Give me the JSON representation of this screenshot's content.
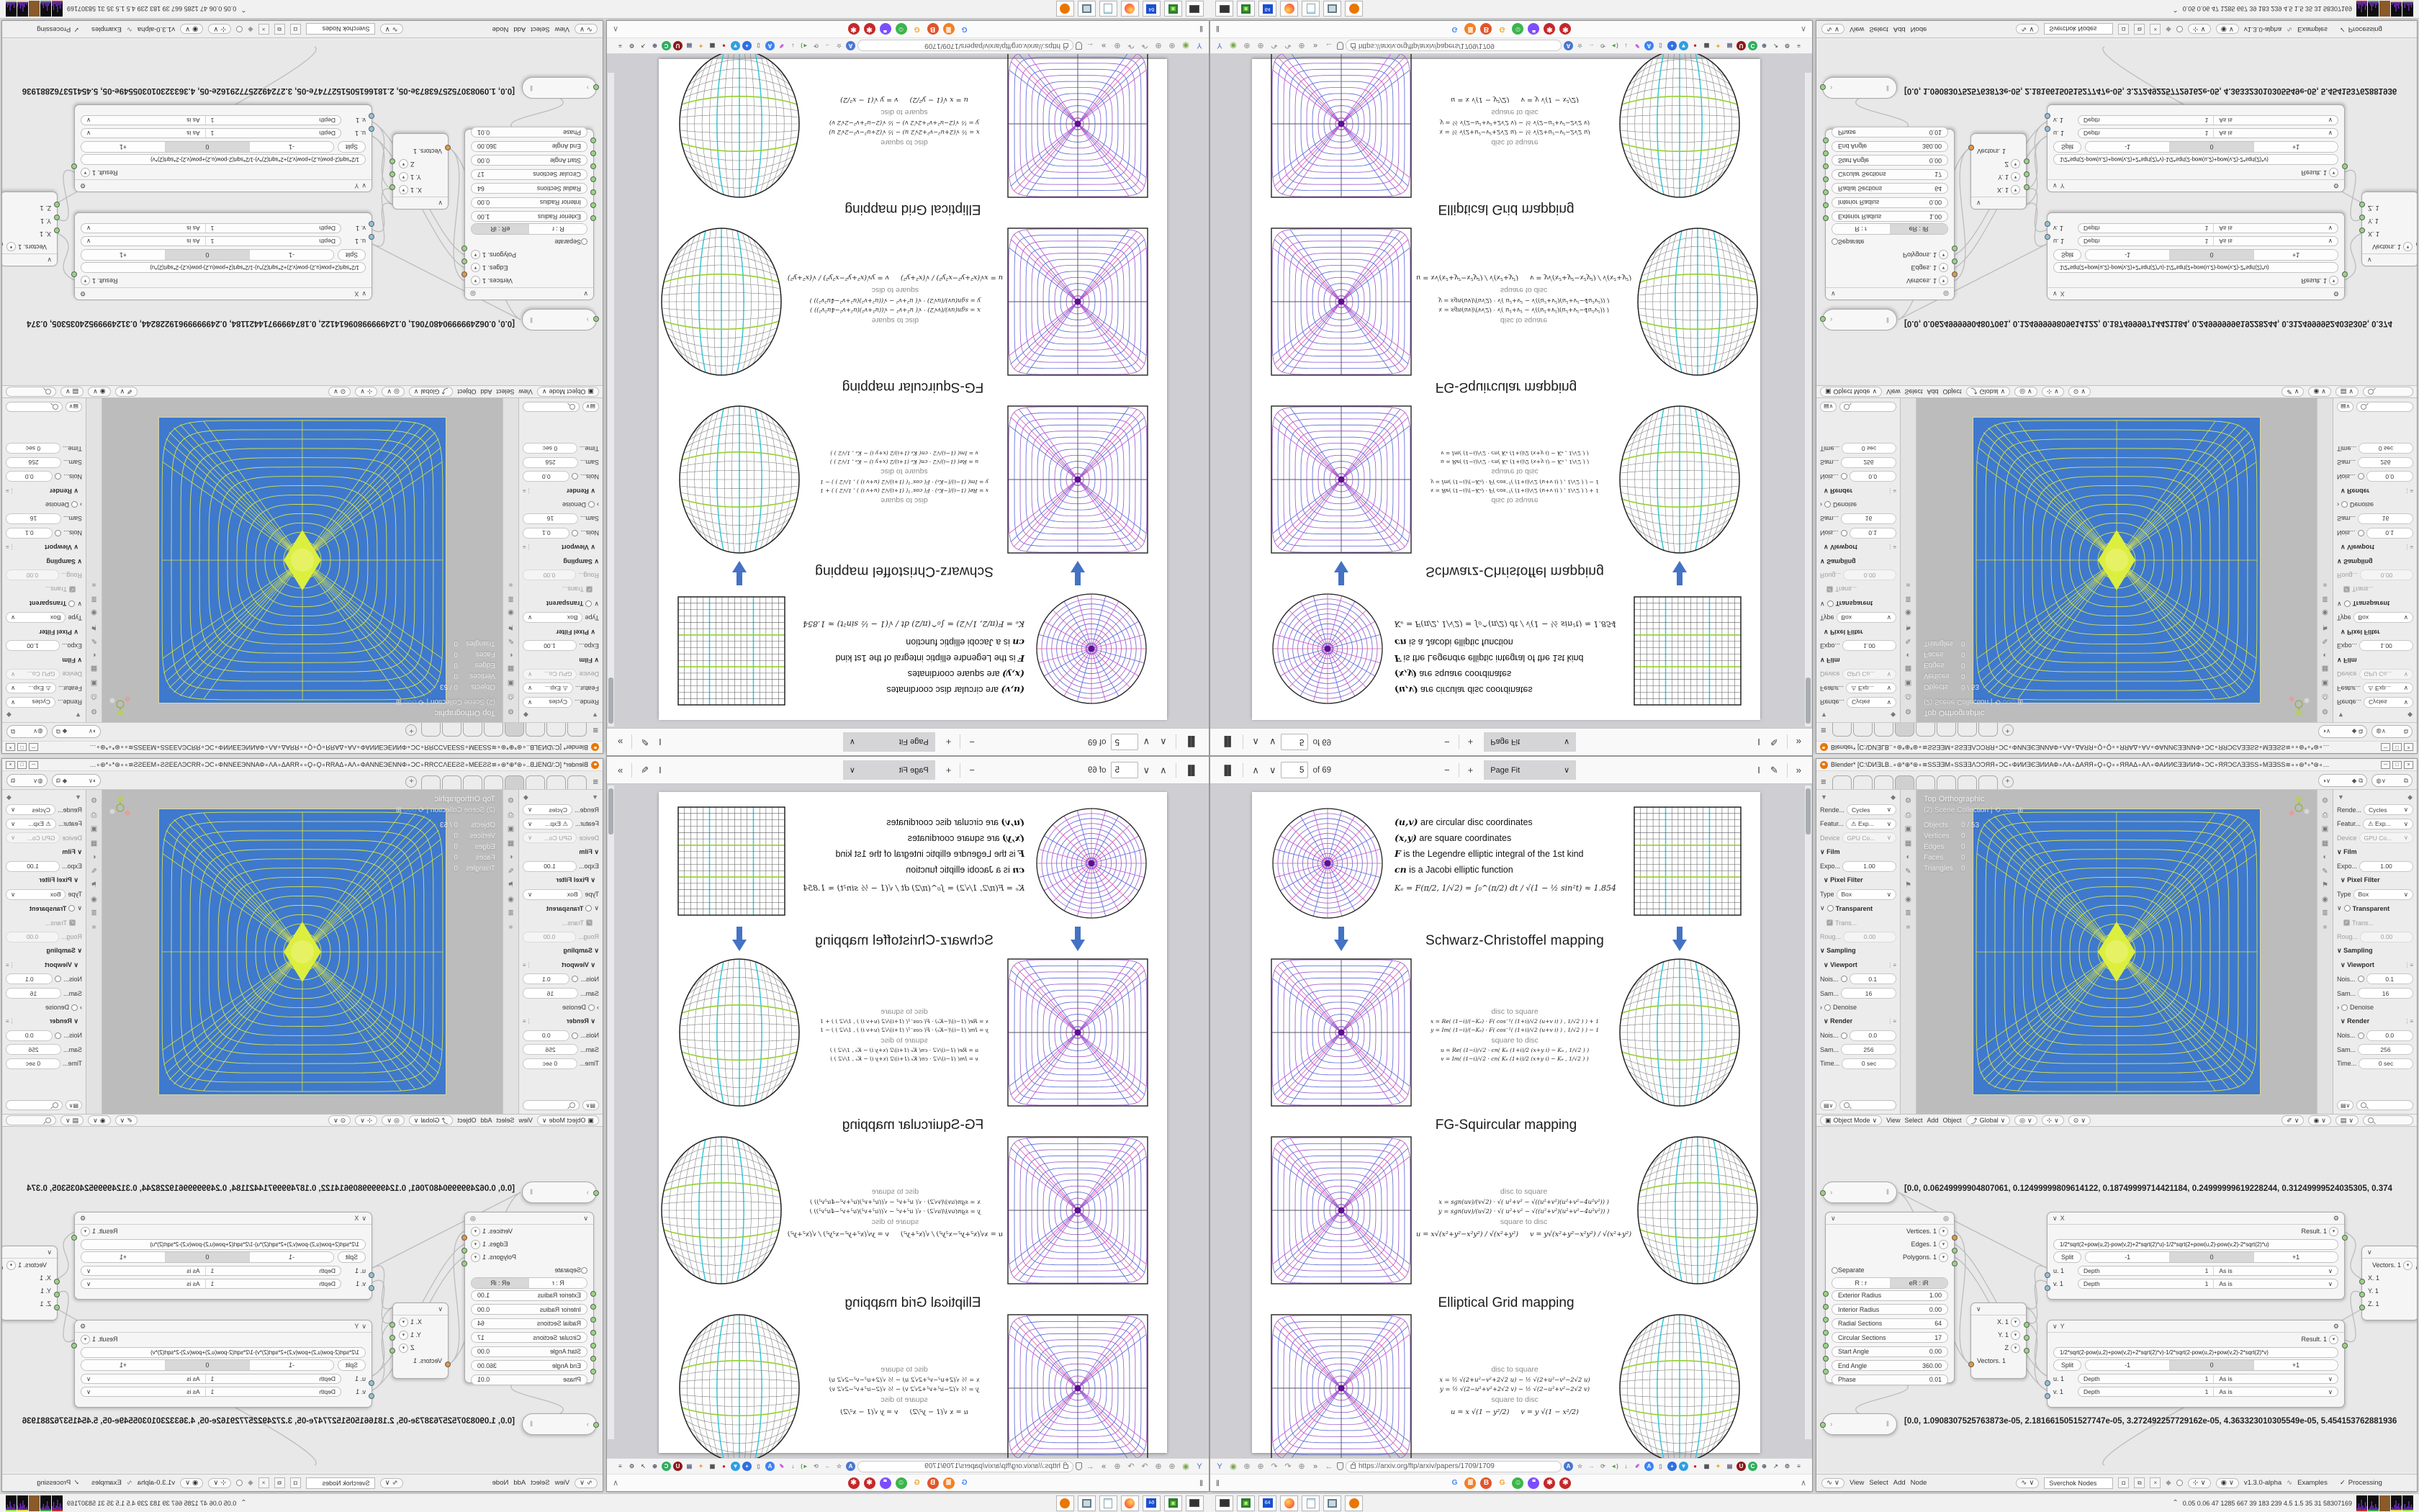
{
  "pdf": {
    "toolbar": {
      "page": "5",
      "of_label": "of 69",
      "zoom_value": "Page Fit",
      "minus": "−",
      "plus": "+",
      "up": "∧",
      "down": "∨",
      "text_tool": "I",
      "draw_tool": "✎",
      "more": "»"
    },
    "page": {
      "intro": {
        "lines": [
          {
            "lead": "(u,v)",
            "rest": "are circular disc coordinates"
          },
          {
            "lead": "(x,y)",
            "rest": "are square coordinates"
          },
          {
            "lead": "F",
            "rest": "is the Legendre elliptic integral of the 1st kind"
          },
          {
            "lead": "cn",
            "rest": "is a Jacobi elliptic function"
          }
        ],
        "ke_formula": "Kₑ = F(π/2, 1/√2) = ∫₀^(π/2) dt / √(1 − ½ sin²t)  ≈ 1.854"
      },
      "sections": [
        {
          "title": "Schwarz-Christoffel mapping",
          "d2s_label": "disc to square",
          "d2s": [
            "x = Re( (1−i)/(−Kₑ) · F( cos⁻¹( (1+i)/√2 (u+v i) ) , 1/√2 ) ) + 1",
            "y = Im( (1−i)/(−Kₑ) · F( cos⁻¹( (1+i)/√2 (u+v i) ) , 1/√2 ) ) − 1"
          ],
          "s2d_label": "square to disc",
          "s2d": [
            "u = Re( (1−i)/√2 · cn( Kₑ (1+i)/2 (x+y i) − Kₑ , 1/√2 ) )",
            "v = Im( (1−i)/√2 · cn( Kₑ (1+i)/2 (x+y i) − Kₑ , 1/√2 ) )"
          ],
          "s2d_inline": false,
          "fsize": "f-sc"
        },
        {
          "title": "FG-Squircular mapping",
          "d2s_label": "disc to square",
          "d2s": [
            "x = sgn(uv)/(v√2) · √( u²+v² − √((u²+v²)(u²+v²−4u²v²)) )",
            "y = sgn(uv)/(u√2) · √( u²+v² − √((u²+v²)(u²+v²−4u²v²)) )"
          ],
          "s2d_label": "square to disc",
          "s2d": [
            "u = x√(x²+y²−x²y²) / √(x²+y²)",
            "v = y√(x²+y²−x²y²) / √(x²+y²)"
          ],
          "s2d_inline": true,
          "fsize": "f-md"
        },
        {
          "title": "Elliptical Grid mapping",
          "d2s_label": "disc to square",
          "d2s": [
            "x = ½ √(2+u²−v²+2√2 u)  −  ½ √(2+u²−v²−2√2 u)",
            "y = ½ √(2−u²+v²+2√2 v)  −  ½ √(2−u²+v²−2√2 v)"
          ],
          "s2d_label": "square to disc",
          "s2d": [
            "u = x √(1 − y²/2)",
            "v = y √(1 − x²/2)"
          ],
          "s2d_inline": true,
          "fsize": "f-md"
        }
      ],
      "figures": {
        "disc_rings": 11,
        "disc_spokes": 24,
        "grid_n": 17,
        "ring_colors": [
          "#9a55cf",
          "#5563d8"
        ],
        "spoke_colors": [
          "#e0579c",
          "#5563d8",
          "#c44ad0"
        ],
        "grid_line": "#5a5a5a",
        "grid_cyan": "#35c6d6",
        "grid_green": "#94cf2f",
        "ellipse_line": "#787878",
        "outline": "#222222",
        "center_blob": "#5c1090"
      }
    },
    "url_bar": {
      "url": "https://arxiv.org/ftp/arxiv/papers/1709/1709",
      "left_icons": [
        {
          "g": "Y",
          "c": "#3b6cd4"
        },
        {
          "g": "◉",
          "c": "#7aa84a"
        },
        {
          "g": "⊕",
          "c": "#8a8a8a"
        },
        {
          "g": "⊕",
          "c": "#8a8a8a"
        },
        {
          "g": "↷",
          "c": "#8a8a8a"
        },
        {
          "g": "↷",
          "c": "#8a8a8a"
        },
        {
          "g": "⊕",
          "c": "#8a8a8a"
        },
        {
          "g": "»",
          "c": "#666666"
        },
        {
          "g": "←",
          "c": "#888888"
        }
      ],
      "right_icons": [
        {
          "g": "A",
          "c": "#ffffff",
          "bg": "#4a76d0"
        },
        {
          "g": "☆",
          "c": "#8a8a8a"
        },
        {
          "g": "→",
          "c": "#8a8a8a"
        },
        {
          "g": "⟳",
          "c": "#8a8a8a"
        },
        {
          "g": "◄)",
          "c": "#5a9e48"
        },
        {
          "g": "↓",
          "c": "#555555"
        },
        {
          "g": "✐",
          "c": "#c44fd0"
        },
        {
          "g": "A",
          "c": "#ffffff",
          "bg": "#3b82f6"
        },
        {
          "g": "▯",
          "c": "#888888"
        },
        {
          "g": "+",
          "c": "#ffffff",
          "bg": "#2f6fe0"
        },
        {
          "g": "▼",
          "c": "#ffffff",
          "bg": "#2f9fe0"
        },
        {
          "g": "●",
          "c": "#cc2222"
        },
        {
          "g": "▦",
          "c": "#444444"
        },
        {
          "g": "✦",
          "c": "#e8a33d"
        },
        {
          "g": "▤",
          "c": "#555577"
        },
        {
          "g": "U",
          "c": "#ffffff",
          "bg": "#8b1a1a"
        },
        {
          "g": "C",
          "c": "#ffffff",
          "bg": "#2fae5f"
        },
        {
          "g": "⊕",
          "c": "#445566"
        },
        {
          "g": "↗",
          "c": "#666666"
        },
        {
          "g": "⚙",
          "c": "#666666"
        },
        {
          "g": "≡",
          "c": "#444444"
        }
      ]
    },
    "bookmarks": {
      "pause": "‖",
      "collapse": "∧",
      "icons": [
        {
          "g": "G",
          "c": "#4285F4",
          "bg": ""
        },
        {
          "g": "≣",
          "c": "#ffffff",
          "bg": "#f48024"
        },
        {
          "g": "B",
          "c": "#ffffff",
          "bg": "#e0552a"
        },
        {
          "g": "G",
          "c": "#f4a11d",
          "bg": ""
        },
        {
          "g": "☺",
          "c": "#ffffff",
          "bg": "#3bb54a"
        },
        {
          "g": "❝",
          "c": "#ffffff",
          "bg": "#7c4dff"
        },
        {
          "g": "✱",
          "c": "#ffffff",
          "bg": "#c62828"
        },
        {
          "g": "✱",
          "c": "#ffffff",
          "bg": "#c62828"
        }
      ]
    }
  },
  "blender": {
    "title": "Blender* [C:\\DИƎLB..∘⊛*⊕*⊛∘≋SSƎƎM∘SSƎƎΛƆϽЯЯ∘ϽϹ∘ΦИИƎЄƎИИΑΦ∘ΛΑ∘ΔΑЯЯ∘Ϙ∘Ϙ∘∘ЯЯΑΔ∘ΑΛ∘ΦΑИИЄƎƎИИΦ∘ϽϹ∘ЯЯϽϾΛƎƎSS∘MƎƎSS≋∘∘⊛*∘*⊛∘…",
    "window_buttons": [
      "─",
      "□",
      "×"
    ],
    "tabs": {
      "count": 8,
      "active_index": 3,
      "add": "+"
    },
    "props": {
      "rows": [
        {
          "label": "Rende...",
          "value": "Cycles",
          "kind": "select"
        },
        {
          "label": "Featur...",
          "value": "⚠ Exp...",
          "kind": "select"
        },
        {
          "label": "Device",
          "value": "GPU Co...",
          "kind": "select-dim"
        },
        {
          "label": "Film",
          "kind": "section"
        },
        {
          "label": "Expo...",
          "value": "1.00",
          "kind": "field"
        },
        {
          "label": "Pixel Filter",
          "kind": "subsection"
        },
        {
          "label": "Type",
          "value": "Box",
          "kind": "select"
        },
        {
          "label": "Transparent",
          "kind": "section-check"
        },
        {
          "label": "Trans...",
          "kind": "check-dim"
        },
        {
          "label": "Roug...",
          "value": "0.00",
          "kind": "field-dim"
        },
        {
          "label": "Sampling",
          "kind": "section"
        },
        {
          "label": "Viewport",
          "kind": "subsection-icons"
        },
        {
          "label": "Nois...",
          "value": "0.1",
          "kind": "check-field"
        },
        {
          "label": "Sam...",
          "value": "16",
          "kind": "field"
        },
        {
          "label": "Denoise",
          "kind": "collapsed-check"
        },
        {
          "label": "Render",
          "kind": "subsection-icons"
        },
        {
          "label": "Nois...",
          "value": "0.0",
          "kind": "check-field"
        },
        {
          "label": "Sam...",
          "value": "256",
          "kind": "field"
        },
        {
          "label": "Time...",
          "value": "0 sec",
          "kind": "field"
        }
      ],
      "tab_icons": [
        "⚙",
        "⎙",
        "▣",
        "▦",
        "◐",
        "✎",
        "⚑",
        "◉",
        "≣",
        "⌗"
      ]
    },
    "viewport": {
      "overlay1": "Top Orthographic",
      "overlay2": "(2) Scene Collection | ⟲ ◌◌◌ ⊞",
      "stats": [
        {
          "label": "Objects",
          "value": "0 / 53"
        },
        {
          "label": "Vertices",
          "value": "0"
        },
        {
          "label": "Edges",
          "value": "0"
        },
        {
          "label": "Faces",
          "value": "0"
        },
        {
          "label": "Triangles",
          "value": "0"
        }
      ],
      "canvas": {
        "bg": "#3e79cd",
        "line": "#d5e24b",
        "blob": "#dcef3e",
        "rings": 15,
        "spokes": 36
      }
    },
    "header": {
      "mode": "Object Mode",
      "menus": [
        "View",
        "Select",
        "Add",
        "Object"
      ],
      "orient": "Global"
    },
    "node_editor": {
      "numline1": "[0.0, 0.06249999904807061, 0.12499999809614122, 0.18749999714421184, 0.24999999619228244, 0.31249999524035305, 0.374",
      "numline2": "[0.0, 1.0908307525763873e-05, 2.1816615051527747e-05, 3.272492257729162e-05, 4.363323010305549e-05, 5.454153762881936",
      "torus": {
        "outputs": [
          "Vertices. 1",
          "Edges. 1",
          "Polygons. 1"
        ],
        "separate": "Separate",
        "toggle": [
          "R : r",
          "eR : iR"
        ],
        "params": [
          {
            "label": "Exterior Radius",
            "value": "1.00"
          },
          {
            "label": "Interior Radius",
            "value": "0.00"
          },
          {
            "label": "Radial Sections",
            "value": "64"
          },
          {
            "label": "Circular Sections",
            "value": "17"
          },
          {
            "label": "Start Angle",
            "value": "0.00"
          },
          {
            "label": "End Angle",
            "value": "360.00"
          },
          {
            "label": "Phase",
            "value": "0.01"
          }
        ]
      },
      "x_node": {
        "title": "X",
        "result": "Result. 1",
        "formula": "1/2*sqrt(2+pow(u,2)-pow(v,2)+2*sqrt(2)*u)-1/2*sqrt(2+pow(u,2)-pow(v,2)-2*sqrt(2)*u)",
        "buttons": [
          "Split",
          "-1",
          "0",
          "+1"
        ],
        "inputs": [
          {
            "name": "u. 1",
            "a": "Depth",
            "av": "1",
            "b": "As is"
          },
          {
            "name": "v. 1",
            "a": "Depth",
            "av": "1",
            "b": "As is"
          }
        ]
      },
      "y_node": {
        "title": "Y",
        "result": "Result. 1",
        "formula": "1/2*sqrt(2-pow(u,2)+pow(v,2)+2*sqrt(2)*v)-1/2*sqrt(2-pow(u,2)+pow(v,2)-2*sqrt(2)*v)",
        "buttons": [
          "Split",
          "-1",
          "0",
          "+1"
        ],
        "inputs": [
          {
            "name": "u. 1",
            "a": "Depth",
            "av": "1",
            "b": "As is"
          },
          {
            "name": "v. 1",
            "a": "Depth",
            "av": "1",
            "b": "As is"
          }
        ]
      },
      "vec_out": {
        "outputs": [
          "X. 1",
          "Y. 1",
          "Z"
        ],
        "input": "Vectors. 1"
      },
      "vec_in": {
        "output": "Vectors. 1",
        "inputs": [
          "X. 1",
          "Y. 1",
          "Z. 1"
        ]
      }
    },
    "footer": {
      "menus": [
        "View",
        "Select",
        "Add",
        "Node"
      ],
      "search_value": "Sverchok Nodes",
      "version": "v1.3.0-alpha",
      "examples": "Examples",
      "processing": "Processing",
      "check": "✓"
    }
  },
  "taskbar": {
    "apps": [
      "monitor",
      "chip",
      "floppy64",
      "firefox",
      "notepad",
      "frame",
      "blender"
    ],
    "tray_chevron": "⌃",
    "tray_text": "0.05 0.06   47   1285 667   39   183   239   4.5   1.5   35   31   58307169",
    "graphs": [
      {
        "bg": "#0d0d0d",
        "bars": [
          3,
          9,
          4,
          14,
          6,
          3,
          11,
          5
        ],
        "color": "#7b2fd0",
        "base": "#c9302c"
      },
      {
        "bg": "#0d0d0d",
        "bars": [
          2,
          5,
          12,
          6,
          3,
          8,
          4,
          2
        ],
        "color": "#7b2fd0",
        "base": "#3fae49"
      },
      {
        "bg": "#8a5a28",
        "bars": [],
        "color": "#8a5a28",
        "base": "#8a5a28"
      },
      {
        "bg": "#0d0d0d",
        "bars": [
          4,
          2,
          7,
          13,
          5,
          9,
          3,
          6
        ],
        "color": "#7b2fd0",
        "base": "#e8d44c"
      },
      {
        "bg": "#0d0d0d",
        "bars": [
          2,
          8,
          3,
          5,
          12,
          4,
          7,
          3
        ],
        "color": "#7b2fd0",
        "base": "#9de24c"
      }
    ]
  }
}
